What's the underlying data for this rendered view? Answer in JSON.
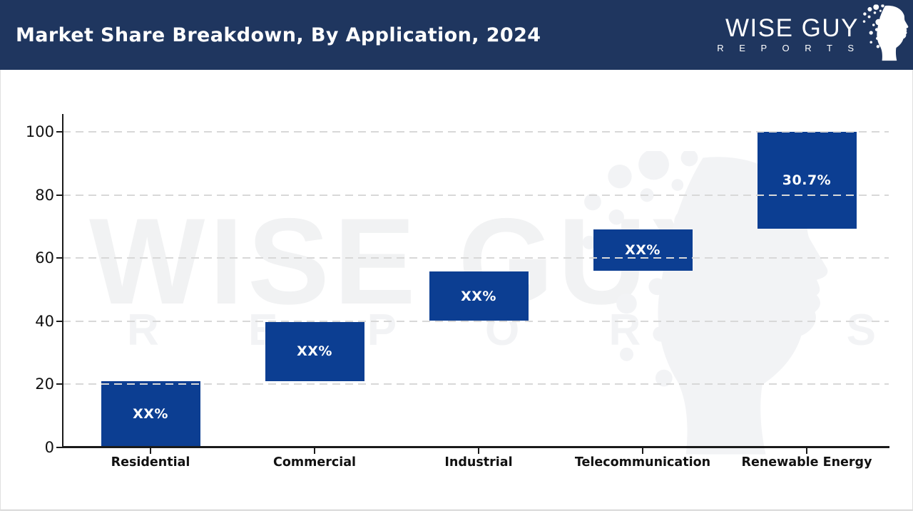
{
  "header": {
    "bg_color": "#1f365f",
    "title": "Market Share Breakdown, By Application, 2024",
    "logo": {
      "line1": "WISE GUY",
      "line2": "R E P O R T S"
    }
  },
  "watermark": {
    "line1": "WISE GUY",
    "line2": "R E P O R T S"
  },
  "chart_data": {
    "type": "bar",
    "subtype": "stepped-waterfall",
    "title": "Market Share Breakdown, By Application, 2024",
    "categories": [
      "Residential",
      "Commercial",
      "Industrial",
      "Telecommunication",
      "Renewable Energy"
    ],
    "bars": [
      {
        "category": "Residential",
        "start": 0,
        "end": 20.9,
        "label": "XX%"
      },
      {
        "category": "Commercial",
        "start": 21.0,
        "end": 39.7,
        "label": "XX%"
      },
      {
        "category": "Industrial",
        "start": 40.1,
        "end": 55.7,
        "label": "XX%"
      },
      {
        "category": "Telecommunication",
        "start": 55.9,
        "end": 69.0,
        "label": "XX%"
      },
      {
        "category": "Renewable Energy",
        "start": 69.3,
        "end": 100.0,
        "label": "30.7%"
      }
    ],
    "bar_color": "#0c3e92",
    "label_color": "#ffffff",
    "xlabel": "",
    "ylabel": "",
    "yaxis": {
      "ticks": [
        0,
        20,
        40,
        60,
        80,
        100
      ],
      "range": [
        0,
        106
      ]
    },
    "grid": {
      "visible": true,
      "style": "dashed",
      "color": "#d8d8d8",
      "drawn_above_bars": true
    },
    "legend": {
      "visible": false
    }
  }
}
